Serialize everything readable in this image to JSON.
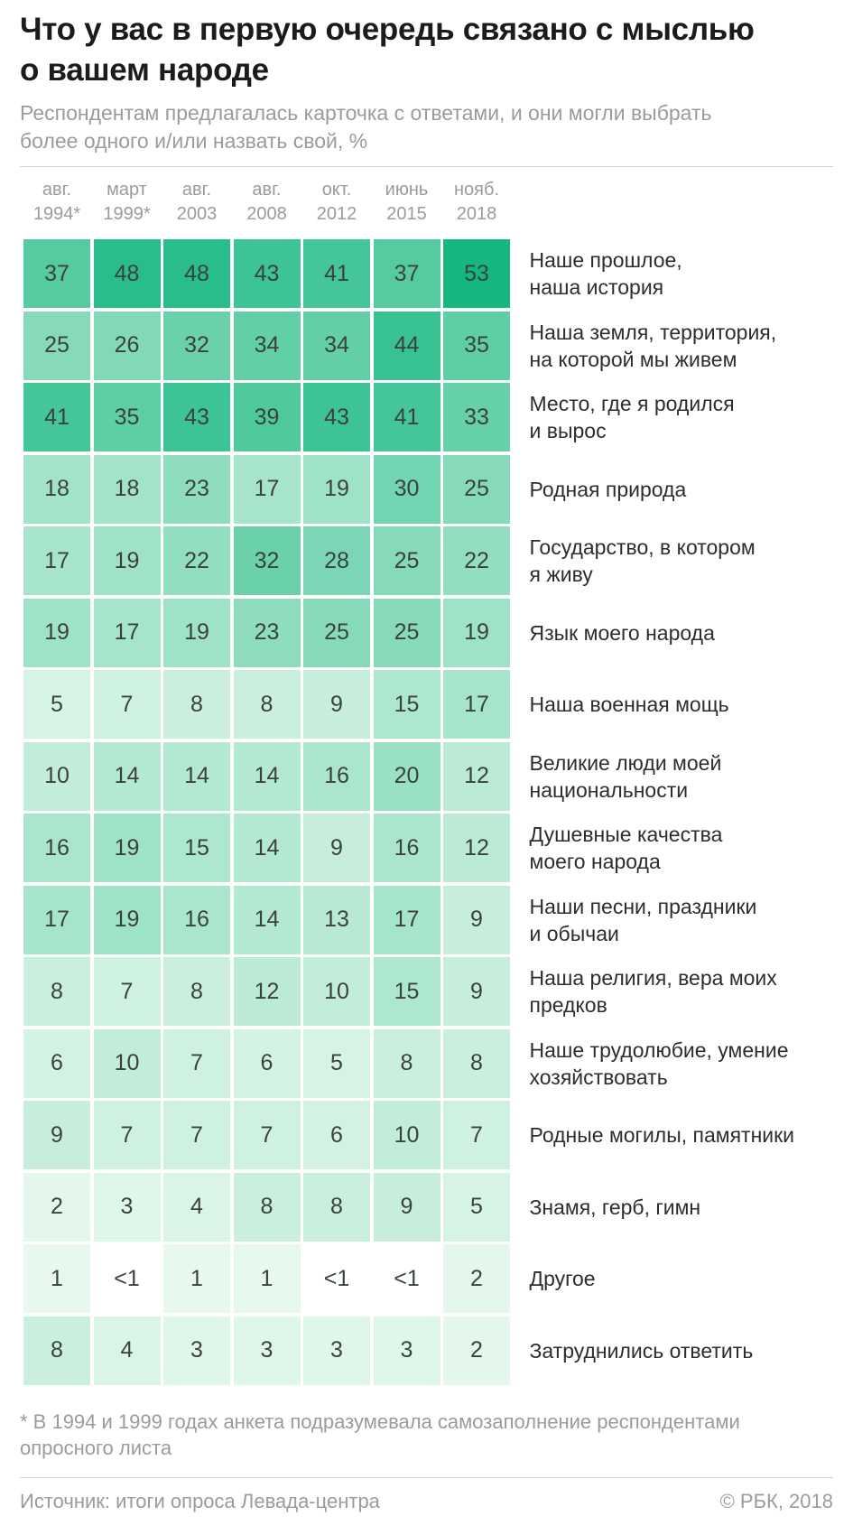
{
  "header": {
    "title": "Что у вас в первую очередь связано с мыслью\nо вашем народе",
    "subtitle": "Респондентам предлагалась карточка с ответами, и они могли выбрать\nболее одного и/или назвать свой, %"
  },
  "chart_data": {
    "type": "heatmap",
    "unit": "%",
    "columns": [
      {
        "month": "авг.",
        "year": "1994*"
      },
      {
        "month": "март",
        "year": "1999*"
      },
      {
        "month": "авг.",
        "year": "2003"
      },
      {
        "month": "авг.",
        "year": "2008"
      },
      {
        "month": "окт.",
        "year": "2012"
      },
      {
        "month": "июнь",
        "year": "2015"
      },
      {
        "month": "нояб.",
        "year": "2018"
      }
    ],
    "rows": [
      {
        "label": "Наше прошлое,\nнаша история",
        "values": [
          37,
          48,
          48,
          43,
          41,
          37,
          53
        ]
      },
      {
        "label": "Наша земля, территория,\nна которой мы живем",
        "values": [
          25,
          26,
          32,
          34,
          34,
          44,
          35
        ]
      },
      {
        "label": "Место, где я родился\nи вырос",
        "values": [
          41,
          35,
          43,
          39,
          43,
          41,
          33
        ]
      },
      {
        "label": "Родная природа",
        "values": [
          18,
          18,
          23,
          17,
          19,
          30,
          25
        ]
      },
      {
        "label": "Государство, в котором\nя живу",
        "values": [
          17,
          19,
          22,
          32,
          28,
          25,
          22
        ]
      },
      {
        "label": "Язык моего народа",
        "values": [
          19,
          17,
          19,
          23,
          25,
          25,
          19
        ]
      },
      {
        "label": "Наша военная мощь",
        "values": [
          5,
          7,
          8,
          8,
          9,
          15,
          17
        ]
      },
      {
        "label": "Великие люди моей\nнациональности",
        "values": [
          10,
          14,
          14,
          14,
          16,
          20,
          12
        ]
      },
      {
        "label": "Душевные качества\nмоего народа",
        "values": [
          16,
          19,
          15,
          14,
          9,
          16,
          12
        ]
      },
      {
        "label": "Наши песни, праздники\nи обычаи",
        "values": [
          17,
          19,
          16,
          14,
          13,
          17,
          9
        ]
      },
      {
        "label": "Наша религия, вера моих\nпредков",
        "values": [
          8,
          7,
          8,
          12,
          10,
          15,
          9
        ]
      },
      {
        "label": "Наше трудолюбие, умение\nхозяйствовать",
        "values": [
          6,
          10,
          7,
          6,
          5,
          8,
          8
        ]
      },
      {
        "label": "Родные могилы, памятники",
        "values": [
          9,
          7,
          7,
          7,
          6,
          10,
          7
        ]
      },
      {
        "label": "Знамя, герб, гимн",
        "values": [
          2,
          3,
          4,
          8,
          8,
          9,
          5
        ]
      },
      {
        "label": "Другое",
        "values": [
          1,
          "<1",
          1,
          1,
          "<1",
          "<1",
          2
        ]
      },
      {
        "label": "Затруднились ответить",
        "values": [
          8,
          4,
          3,
          3,
          3,
          3,
          2
        ]
      }
    ],
    "color_scale": {
      "min_value": 1,
      "max_value": 53,
      "min_color": "#e7f8ee",
      "max_color": "#15b77e",
      "special": {
        "<1": "#ffffff"
      }
    },
    "value_text_color": "#39423f"
  },
  "footnote": "* В 1994 и 1999 годах анкета подразумевала самозаполнение респондентами\nопросного листа",
  "footer": {
    "source": "Источник: итоги опроса Левада-центра",
    "copyright": "© РБК, 2018"
  }
}
